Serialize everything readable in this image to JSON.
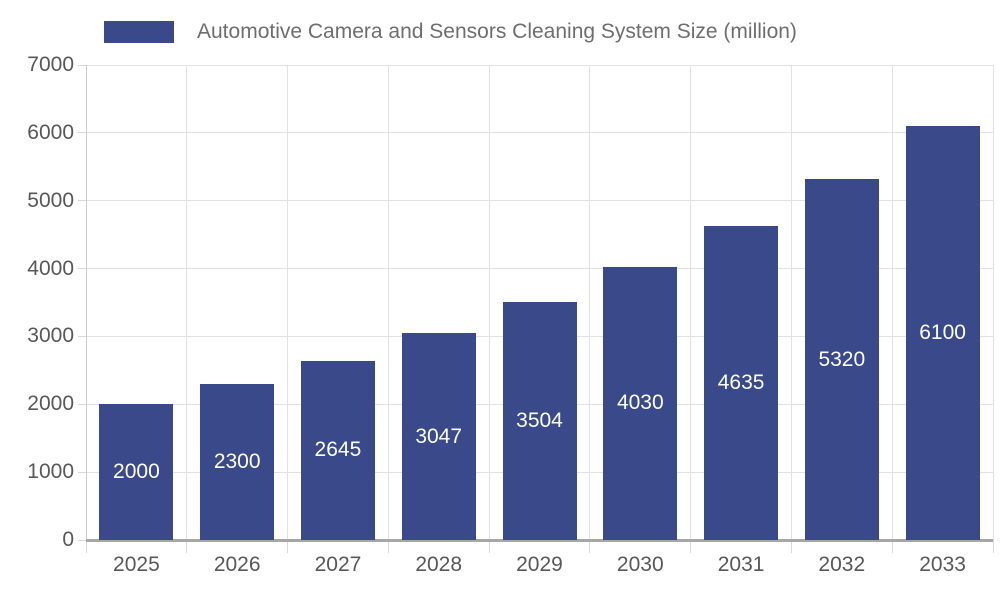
{
  "legend": {
    "label": "Automotive Camera and Sensors Cleaning System Size (million)"
  },
  "chart_data": {
    "type": "bar",
    "title": "Automotive Camera and Sensors Cleaning System Size (million)",
    "categories": [
      "2025",
      "2026",
      "2027",
      "2028",
      "2029",
      "2030",
      "2031",
      "2032",
      "2033"
    ],
    "values": [
      2000,
      2300,
      2645,
      3047,
      3504,
      4030,
      4635,
      5320,
      6100
    ],
    "xlabel": "",
    "ylabel": "",
    "ylim": [
      0,
      7000
    ],
    "yticks": [
      0,
      1000,
      2000,
      3000,
      4000,
      5000,
      6000,
      7000
    ],
    "grid": true,
    "legend_position": "top-left",
    "value_labels_shown": true
  },
  "colors": {
    "bar": "#39498A",
    "value_label": "#FFFFFF",
    "legend_text": "#6E6E6E",
    "axis_text": "#58585A",
    "gridline": "#E2E2E2",
    "tick": "#D9D9D9",
    "spine": "#CBCBCB",
    "baseline": "#A6A6A6",
    "background": "#FFFFFF"
  }
}
